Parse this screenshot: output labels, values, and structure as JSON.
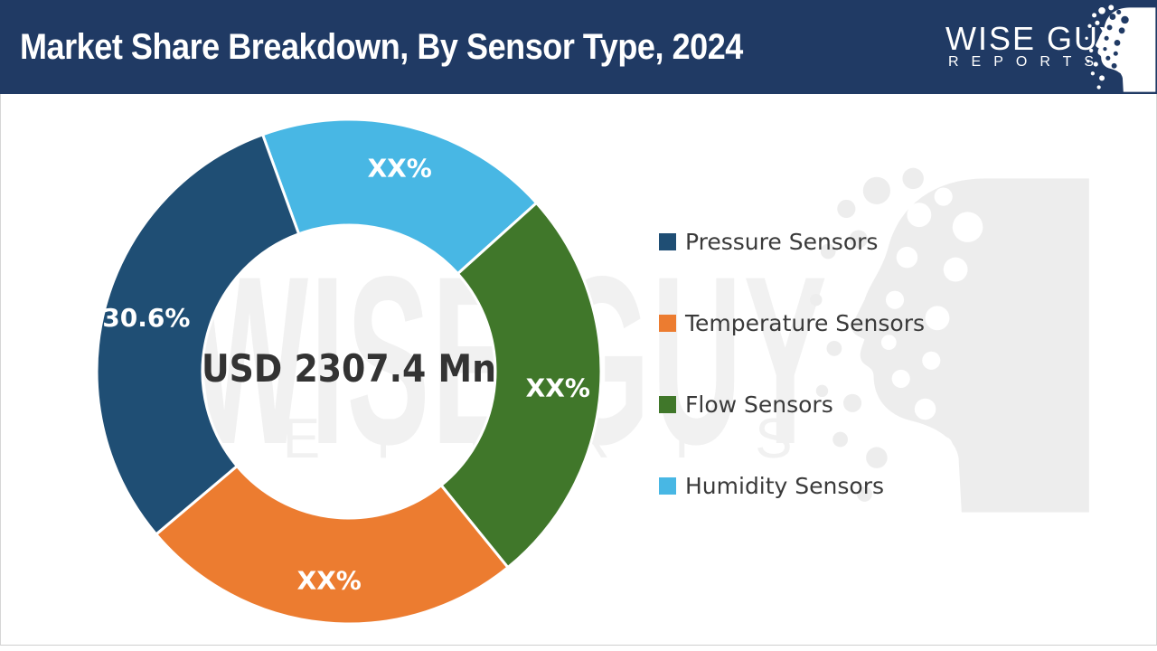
{
  "header": {
    "title": "Market Share Breakdown, By Sensor Type, 2024",
    "logo": {
      "line1": "WISE GUY",
      "line2": "REPORTS"
    }
  },
  "watermark": {
    "line1": "WISE GUY",
    "line2": "REPORTS"
  },
  "chart_data": {
    "type": "pie",
    "subtype": "donut",
    "title": "Market Share Breakdown, By Sensor Type, 2024",
    "center_label": "USD 2307.4 Mn",
    "start_angle_deg": -20,
    "donut_hole_ratio": 0.58,
    "legend_position": "right",
    "segments": [
      {
        "label": "Humidity Sensors",
        "display_label": "XX%",
        "value_pct": 18.9,
        "color": "#48b7e4"
      },
      {
        "label": "Flow Sensors",
        "display_label": "XX%",
        "value_pct": 25.8,
        "color": "#40772a"
      },
      {
        "label": "Temperature Sensors",
        "display_label": "XX%",
        "value_pct": 24.7,
        "color": "#ec7c30"
      },
      {
        "label": "Pressure Sensors",
        "display_label": "30.6%",
        "value_pct": 30.6,
        "color": "#1f4e74"
      }
    ],
    "legend": [
      {
        "label": "Pressure Sensors",
        "color": "#1f4e74"
      },
      {
        "label": "Temperature Sensors",
        "color": "#ec7c30"
      },
      {
        "label": "Flow Sensors",
        "color": "#40772a"
      },
      {
        "label": "Humidity Sensors",
        "color": "#48b7e4"
      }
    ]
  },
  "colors": {
    "header_bg": "#203a64",
    "border": "#d6d6d6",
    "watermark": "#f1f1f1",
    "face_watermark": "#ededed",
    "center_text": "#333333",
    "slice_gap": "#ffffff"
  }
}
